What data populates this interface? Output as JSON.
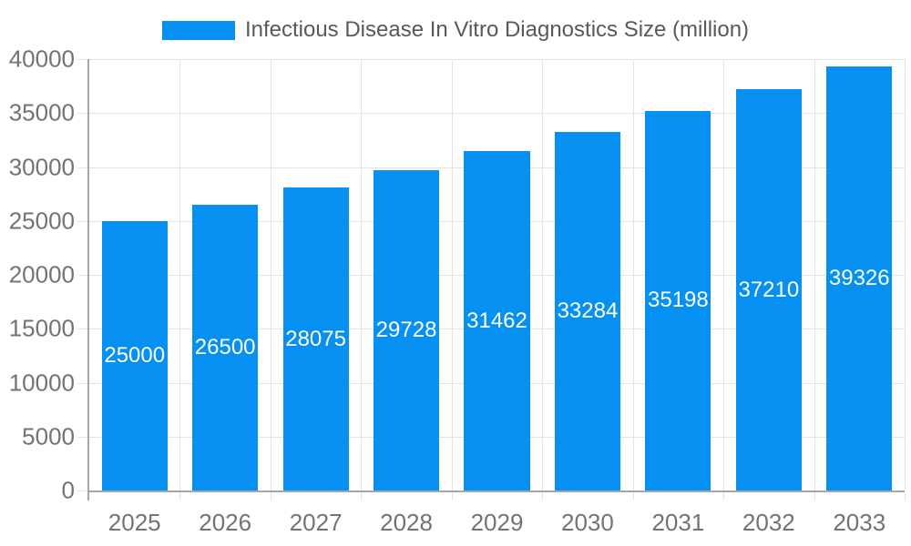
{
  "chart_data": {
    "type": "bar",
    "title": "Infectious Disease In Vitro Diagnostics Size (million)",
    "categories": [
      "2025",
      "2026",
      "2027",
      "2028",
      "2029",
      "2030",
      "2031",
      "2032",
      "2033"
    ],
    "values": [
      25000,
      26500,
      28075,
      29728,
      31462,
      33284,
      35198,
      37210,
      39326
    ],
    "xlabel": "",
    "ylabel": "",
    "ylim": [
      0,
      40000
    ],
    "yticks": [
      0,
      5000,
      10000,
      15000,
      20000,
      25000,
      30000,
      35000,
      40000
    ],
    "grid": true,
    "legend_position": "top",
    "value_labels": "inside-center",
    "colors": {
      "bar": "#0590F2",
      "value_label": "#FFFFFF",
      "grid_line": "#E3E3E3",
      "axis_line": "#A6A6A6",
      "tick_label": "#737373",
      "title_text": "#595959",
      "background": "#FFFFFF"
    }
  }
}
